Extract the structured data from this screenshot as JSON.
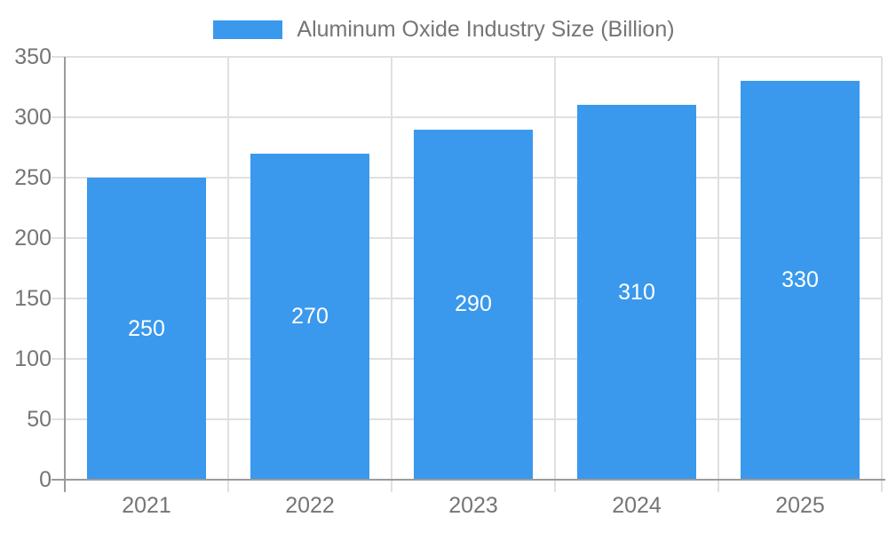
{
  "legend": {
    "label": "Aluminum Oxide Industry Size (Billion)"
  },
  "colors": {
    "bar": "#3A99EC",
    "axis_line": "#9b9b9b",
    "gridline": "#e0e0e0",
    "tick_text": "#757575",
    "bar_label_text": "#ffffff",
    "background": "#ffffff"
  },
  "chart_data": {
    "type": "bar",
    "title": "Aluminum Oxide Industry Size (Billion)",
    "categories": [
      "2021",
      "2022",
      "2023",
      "2024",
      "2025"
    ],
    "values": [
      250,
      270,
      290,
      310,
      330
    ],
    "bar_labels": [
      "250",
      "270",
      "290",
      "310",
      "330"
    ],
    "xlabel": "",
    "ylabel": "",
    "ylim": [
      0,
      350
    ],
    "yticks": [
      0,
      50,
      100,
      150,
      200,
      250,
      300,
      350
    ],
    "grid": true,
    "legend_position": "top-center",
    "bar_label_position": "inside-center"
  }
}
